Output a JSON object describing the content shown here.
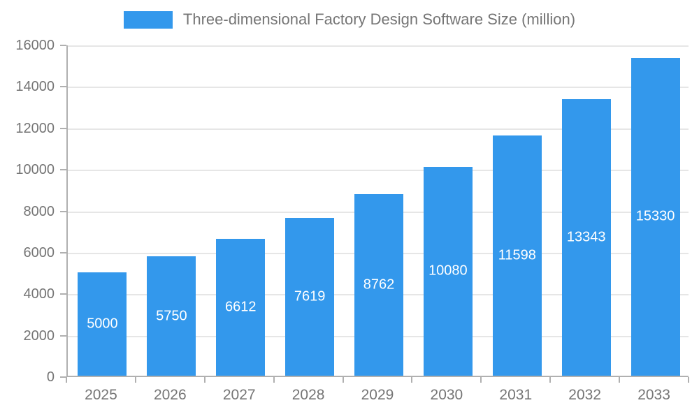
{
  "chart_data": {
    "type": "bar",
    "title": "Three-dimensional Factory Design Software Size (million)",
    "categories": [
      "2025",
      "2026",
      "2027",
      "2028",
      "2029",
      "2030",
      "2031",
      "2032",
      "2033"
    ],
    "values": [
      5000,
      5750,
      6612,
      7619,
      8762,
      10080,
      11598,
      13343,
      15330
    ],
    "xlabel": "",
    "ylabel": "",
    "ylim": [
      0,
      16000
    ],
    "yticks": [
      0,
      2000,
      4000,
      6000,
      8000,
      10000,
      12000,
      14000,
      16000
    ],
    "grid": true,
    "legend_position": "top-center",
    "bar_color": "#3398ec",
    "value_label_color": "#ffffff",
    "axis_text_color": "#757575",
    "axis_line_color": "#b0b0b0",
    "gridline_color": "#e6e6e6"
  }
}
